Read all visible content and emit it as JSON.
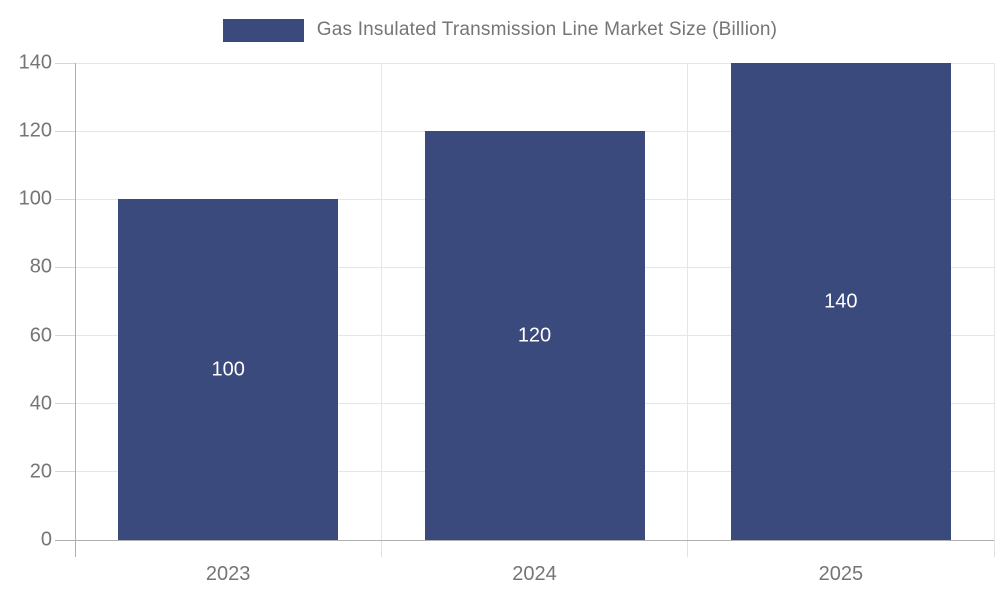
{
  "legend": {
    "label": "Gas Insulated Transmission Line Market Size (Billion)"
  },
  "colors": {
    "bar": "#3a4a7d",
    "grid": "#e6e6e6",
    "axis": "#b0b0b0",
    "tick_label": "#757575",
    "value_label": "#ffffff",
    "background": "#ffffff"
  },
  "chart_data": {
    "type": "bar",
    "title": "Gas Insulated Transmission Line Market Size (Billion)",
    "categories": [
      "2023",
      "2024",
      "2025"
    ],
    "values": [
      100,
      120,
      140
    ],
    "value_labels": [
      "100",
      "120",
      "140"
    ],
    "xlabel": "",
    "ylabel": "",
    "ylim": [
      0,
      140
    ],
    "yticks": [
      0,
      20,
      40,
      60,
      80,
      100,
      120,
      140
    ],
    "grid": true,
    "legend_position": "top-center",
    "value_labels_position": "center-of-bar"
  }
}
